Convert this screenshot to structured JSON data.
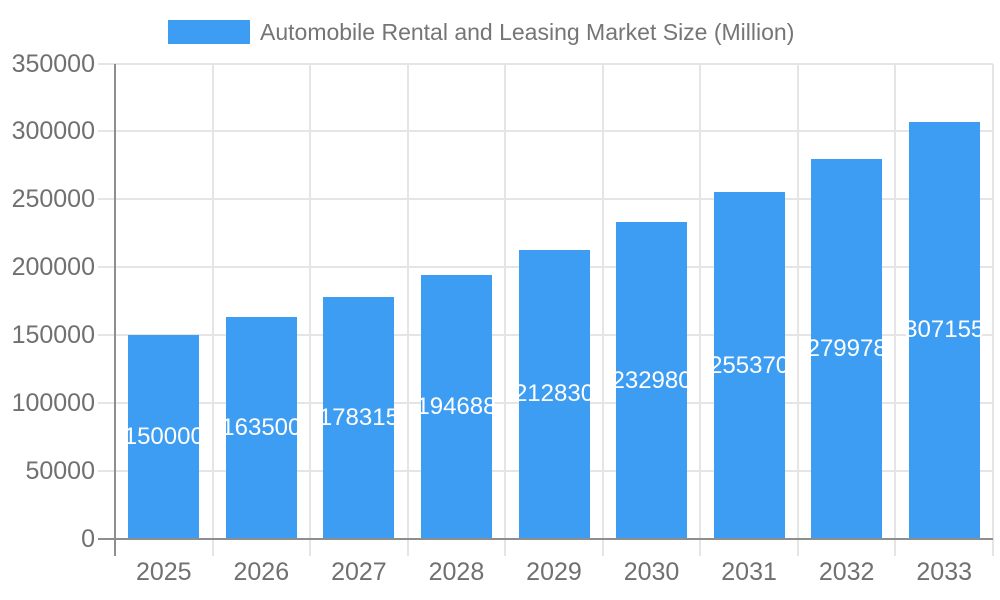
{
  "legend": {
    "label": "Automobile Rental and Leasing Market Size (Million)"
  },
  "chart_data": {
    "type": "bar",
    "title": "Automobile Rental and Leasing Market Size (Million)",
    "xlabel": "",
    "ylabel": "",
    "categories": [
      "2025",
      "2026",
      "2027",
      "2028",
      "2029",
      "2030",
      "2031",
      "2032",
      "2033"
    ],
    "values": [
      150000,
      163500,
      178315,
      194688,
      212830,
      232980,
      255370,
      279978,
      307155
    ],
    "series": [
      {
        "name": "Automobile Rental and Leasing Market Size (Million)",
        "values": [
          150000,
          163500,
          178315,
          194688,
          212830,
          232980,
          255370,
          279978,
          307155
        ]
      }
    ],
    "bar_value_labels": [
      "150000",
      "163500",
      "178315",
      "194688",
      "212830",
      "232980",
      "255370",
      "279978",
      "307155"
    ],
    "ylim": [
      0,
      350000
    ],
    "yticks": [
      0,
      50000,
      100000,
      150000,
      200000,
      250000,
      300000,
      350000
    ],
    "grid": true,
    "legend_position": "top",
    "colors": {
      "bar": "#3D9DF2",
      "grid": "#E5E5E5",
      "axis": "#8E8E8E",
      "tick_text": "#707070",
      "title_text": "#757575",
      "bar_label_text": "#FFFFFF",
      "background": "#FFFFFF"
    }
  }
}
